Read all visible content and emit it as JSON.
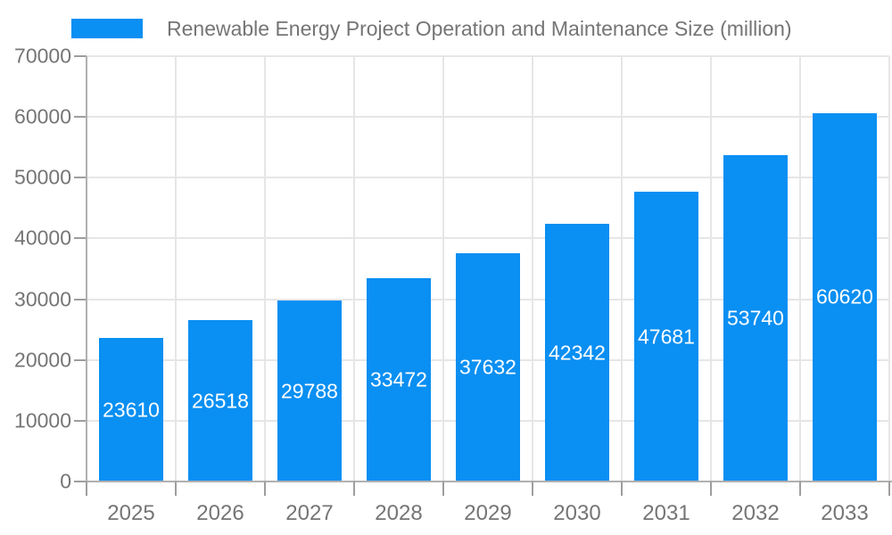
{
  "legend": {
    "label": "Renewable Energy Project Operation and Maintenance Size (million)"
  },
  "chart_data": {
    "type": "bar",
    "title": "Renewable Energy Project Operation and Maintenance Size (million)",
    "categories": [
      "2025",
      "2026",
      "2027",
      "2028",
      "2029",
      "2030",
      "2031",
      "2032",
      "2033"
    ],
    "values": [
      23610,
      26518,
      29788,
      33472,
      37632,
      42342,
      47681,
      53740,
      60620
    ],
    "value_labels": [
      "23610",
      "26518",
      "29788",
      "33472",
      "37632",
      "42342",
      "47681",
      "53740",
      "60620"
    ],
    "xlabel": "",
    "ylabel": "",
    "ylim": [
      0,
      70000
    ],
    "y_tick_step": 10000,
    "y_tick_labels": [
      "0",
      "10000",
      "20000",
      "30000",
      "40000",
      "50000",
      "60000",
      "70000"
    ],
    "grid": true,
    "legend_position": "top-left",
    "bar_label_position": "inside-center"
  },
  "theme": {
    "bar_color": "#0a8ff2",
    "grid_color": "#e6e6e6",
    "axis_color": "#b0b0b0",
    "tick_color": "#9e9e9e",
    "label_color": "#757575",
    "value_label_color": "#ffffff",
    "background": "#ffffff"
  }
}
